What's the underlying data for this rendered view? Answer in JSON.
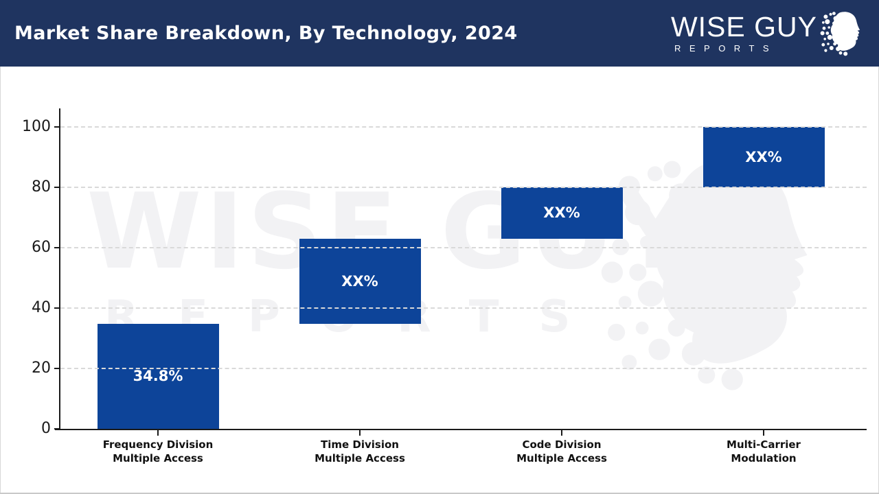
{
  "header": {
    "title": "Market Share Breakdown, By Technology, 2024",
    "bg_color": "#1f3460",
    "logo": {
      "line1": "WISE GUY",
      "line2": "REPORTS"
    }
  },
  "watermark": {
    "line1": "WISE GUY",
    "line2": "REPORTS",
    "color": "#f2f2f4"
  },
  "chart_data": {
    "type": "bar",
    "variant": "floating-waterfall",
    "title": "Market Share Breakdown, By Technology, 2024",
    "categories": [
      [
        "Frequency Division",
        "Multiple Access"
      ],
      [
        "Time Division",
        "Multiple Access"
      ],
      [
        "Code Division",
        "Multiple Access"
      ],
      [
        "Multi-Carrier",
        "Modulation"
      ]
    ],
    "bars": [
      {
        "start": 0,
        "end": 34.8,
        "label": "34.8%"
      },
      {
        "start": 34.8,
        "end": 63,
        "label": "XX%"
      },
      {
        "start": 63,
        "end": 80,
        "label": "XX%"
      },
      {
        "start": 80,
        "end": 100,
        "label": "XX%"
      }
    ],
    "yticks": [
      0,
      20,
      40,
      60,
      80,
      100
    ],
    "ylim": [
      0,
      105
    ],
    "grid": {
      "orientation": "horizontal",
      "style": "dashed",
      "color": "#d9d9d9"
    },
    "legend": "none",
    "colors": {
      "bar": "#0d4499",
      "bar_label": "#ffffff",
      "axis": "#1a1a1a",
      "header_bg": "#1f3460",
      "watermark": "#f2f2f4"
    }
  }
}
